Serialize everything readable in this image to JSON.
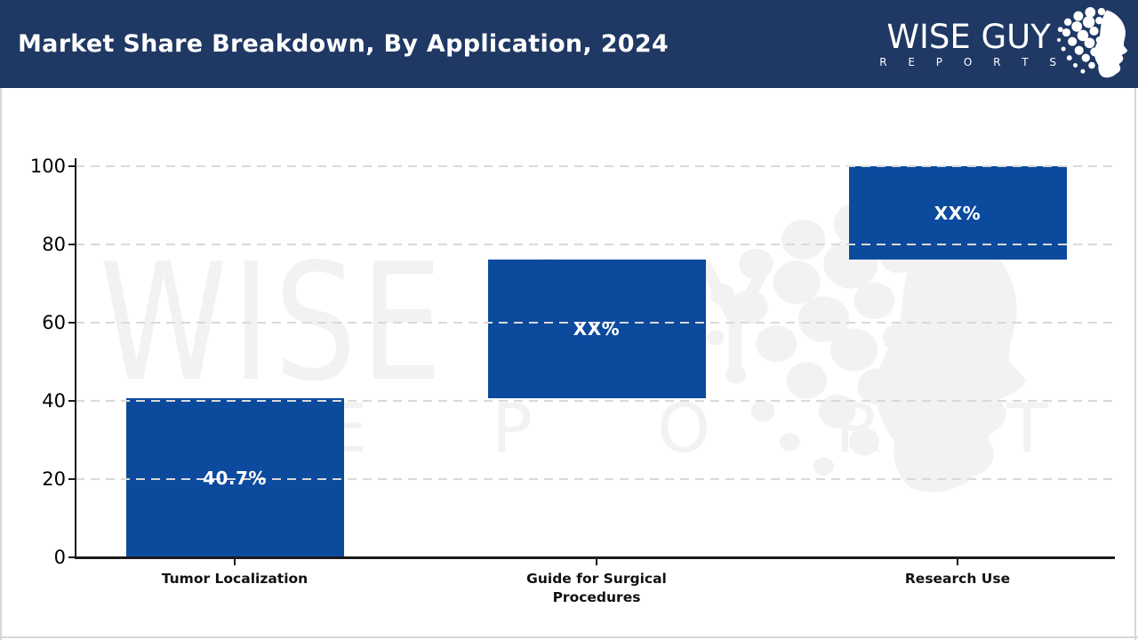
{
  "page": {
    "background": "#FFFFFF",
    "border_color": "#D7D7D7"
  },
  "header": {
    "background": "#1F3864",
    "title": "Market Share Breakdown, By Application, 2024",
    "logo": {
      "brand": "WISE GUY",
      "brand_sub": "R E P O R T S",
      "head_icon": "dotted-head-profile",
      "color": "#FFFFFF"
    }
  },
  "watermark": {
    "line1": "WISE GUY",
    "line2": "R E P O R T S",
    "color": "#F2F2F2"
  },
  "chart_data": {
    "type": "bar",
    "subtype": "waterfall",
    "title": "Market Share Breakdown, By Application, 2024",
    "categories": [
      "Tumor Localization",
      "Guide for Surgical Procedures",
      "Research Use"
    ],
    "segments": [
      {
        "category": "Tumor Localization",
        "start": 0,
        "end": 40.7,
        "label": "40.7%"
      },
      {
        "category": "Guide for Surgical Procedures",
        "start": 40.7,
        "end": 76.2,
        "label": "XX%"
      },
      {
        "category": "Research Use",
        "start": 76.2,
        "end": 100,
        "label": "XX%"
      }
    ],
    "ylim": [
      0,
      100
    ],
    "yticks": [
      0,
      20,
      40,
      60,
      80,
      100
    ],
    "xlabel": "",
    "ylabel": "",
    "grid": {
      "horizontal": true,
      "style": "dashed",
      "color": "#D9D9D9",
      "drawn_over_bars": true
    },
    "legend": null,
    "bar_color": "#0C4A9E",
    "bar_label_color": "#FFFFFF",
    "axis_color": "#1A1A1A"
  }
}
